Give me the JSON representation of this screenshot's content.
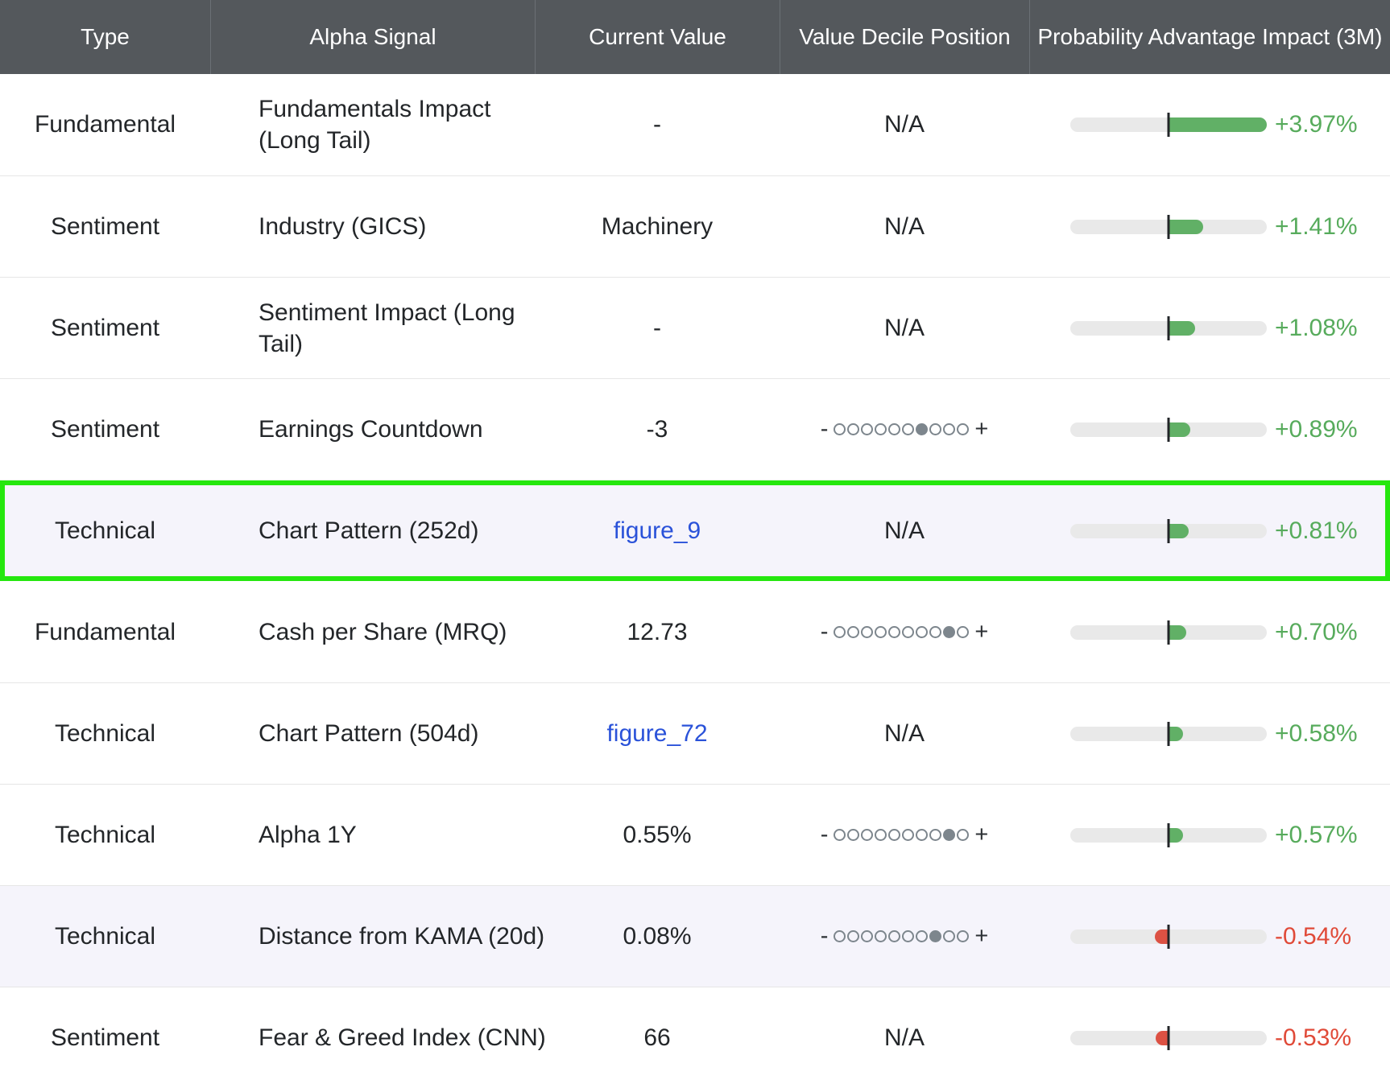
{
  "header": {
    "columns": [
      "Type",
      "Alpha Signal",
      "Current Value",
      "Value Decile Position",
      "Probability Advantage Impact (3M)"
    ]
  },
  "decile_scale": {
    "minus_label": "-",
    "plus_label": "+",
    "dot_count": 10,
    "na_label": "N/A"
  },
  "impact_scale": {
    "max_abs_percent": 3.97
  },
  "colors": {
    "header_bg": "#54585c",
    "positive": "#57ab5c",
    "positive_bar": "#61b066",
    "negative": "#e04a38",
    "negative_bar": "#dc5143",
    "link_blue": "#2a52d9",
    "highlight_border": "#25e70e",
    "row_shade": "#f5f4fb"
  },
  "rows": [
    {
      "type": "Fundamental",
      "signal": "Fundamentals Impact (Long Tail)",
      "signal_lines": [
        "Fundamentals Impact",
        "(Long Tail)"
      ],
      "current_value": "-",
      "value_is_link": false,
      "decile": null,
      "impact_percent": 3.97,
      "impact_label": "+3.97%",
      "highlighted": false,
      "shaded": false
    },
    {
      "type": "Sentiment",
      "signal": "Industry (GICS)",
      "signal_lines": [
        "Industry (GICS)"
      ],
      "current_value": "Machinery",
      "value_is_link": false,
      "decile": null,
      "impact_percent": 1.41,
      "impact_label": "+1.41%",
      "highlighted": false,
      "shaded": false
    },
    {
      "type": "Sentiment",
      "signal": "Sentiment Impact (Long Tail)",
      "signal_lines": [
        "Sentiment Impact (Long",
        "Tail)"
      ],
      "current_value": "-",
      "value_is_link": false,
      "decile": null,
      "impact_percent": 1.08,
      "impact_label": "+1.08%",
      "highlighted": false,
      "shaded": false
    },
    {
      "type": "Sentiment",
      "signal": "Earnings Countdown",
      "signal_lines": [
        "Earnings Countdown"
      ],
      "current_value": "-3",
      "value_is_link": false,
      "decile": 7,
      "impact_percent": 0.89,
      "impact_label": "+0.89%",
      "highlighted": false,
      "shaded": false
    },
    {
      "type": "Technical",
      "signal": "Chart Pattern (252d)",
      "signal_lines": [
        "Chart Pattern (252d)"
      ],
      "current_value": "figure_9",
      "value_is_link": true,
      "decile": null,
      "impact_percent": 0.81,
      "impact_label": "+0.81%",
      "highlighted": true,
      "shaded": true
    },
    {
      "type": "Fundamental",
      "signal": "Cash per Share (MRQ)",
      "signal_lines": [
        "Cash per Share (MRQ)"
      ],
      "current_value": "12.73",
      "value_is_link": false,
      "decile": 9,
      "impact_percent": 0.7,
      "impact_label": "+0.70%",
      "highlighted": false,
      "shaded": false
    },
    {
      "type": "Technical",
      "signal": "Chart Pattern (504d)",
      "signal_lines": [
        "Chart Pattern (504d)"
      ],
      "current_value": "figure_72",
      "value_is_link": true,
      "decile": null,
      "impact_percent": 0.58,
      "impact_label": "+0.58%",
      "highlighted": false,
      "shaded": false
    },
    {
      "type": "Technical",
      "signal": "Alpha 1Y",
      "signal_lines": [
        "Alpha 1Y"
      ],
      "current_value": "0.55%",
      "value_is_link": false,
      "decile": 9,
      "impact_percent": 0.57,
      "impact_label": "+0.57%",
      "highlighted": false,
      "shaded": false
    },
    {
      "type": "Technical",
      "signal": "Distance from KAMA (20d)",
      "signal_lines": [
        "Distance from KAMA (20d)"
      ],
      "current_value": "0.08%",
      "value_is_link": false,
      "decile": 8,
      "impact_percent": -0.54,
      "impact_label": "-0.54%",
      "highlighted": false,
      "shaded": true
    },
    {
      "type": "Sentiment",
      "signal": "Fear & Greed Index (CNN)",
      "signal_lines": [
        "Fear & Greed Index (CNN)"
      ],
      "current_value": "66",
      "value_is_link": false,
      "decile": null,
      "impact_percent": -0.53,
      "impact_label": "-0.53%",
      "highlighted": false,
      "shaded": false
    }
  ]
}
